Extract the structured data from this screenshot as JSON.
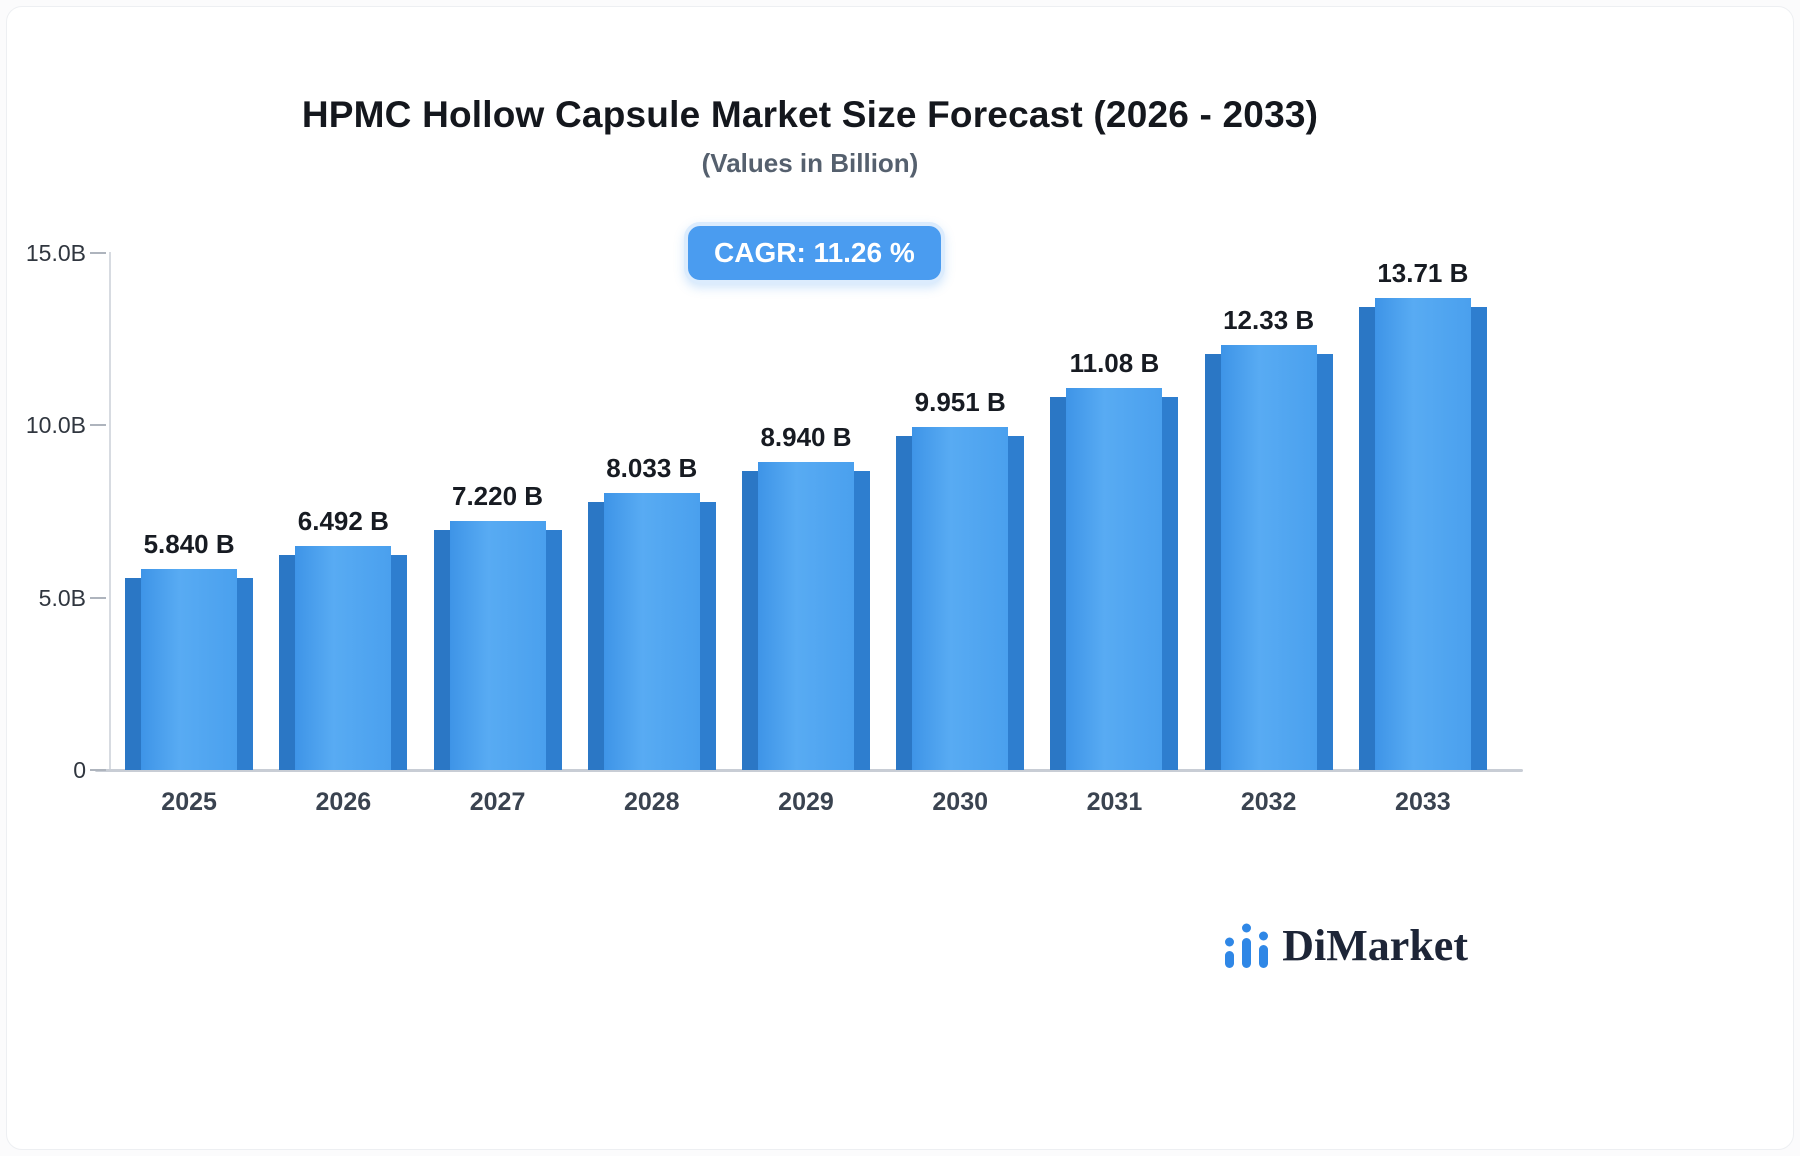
{
  "title": "HPMC Hollow Capsule Market Size Forecast (2026 - 2033)",
  "subtitle": "(Values in Billion)",
  "badge": {
    "label": "CAGR: 11.26 %"
  },
  "logo": {
    "text": "DiMarket"
  },
  "colors": {
    "bar_face": "#4aa0ee",
    "bar_side_left": "#2b77c5",
    "bar_side_right": "#2e7ecf",
    "badge_bg": "#4a9cf0",
    "axis": "#c8cdd5",
    "logo_blue": "#2f87e6"
  },
  "chart_data": {
    "type": "bar",
    "title": "HPMC Hollow Capsule Market Size Forecast (2026 - 2033)",
    "subtitle": "(Values in Billion)",
    "categories": [
      "2025",
      "2026",
      "2027",
      "2028",
      "2029",
      "2030",
      "2031",
      "2032",
      "2033"
    ],
    "values": [
      5.84,
      6.492,
      7.22,
      8.033,
      8.94,
      9.951,
      11.08,
      12.33,
      13.71
    ],
    "value_labels": [
      "5.840 B",
      "6.492 B",
      "7.220 B",
      "8.033 B",
      "8.940 B",
      "9.951 B",
      "11.08 B",
      "12.33 B",
      "13.71 B"
    ],
    "xlabel": "",
    "ylabel": "",
    "ylim": [
      0,
      15
    ],
    "yticks": [
      {
        "value": 0,
        "label": "0"
      },
      {
        "value": 5,
        "label": "5.0B"
      },
      {
        "value": 10,
        "label": "10.0B"
      },
      {
        "value": 15,
        "label": "15.0B"
      }
    ],
    "grid": false,
    "legend": false,
    "annotation": "CAGR: 11.26 %"
  }
}
